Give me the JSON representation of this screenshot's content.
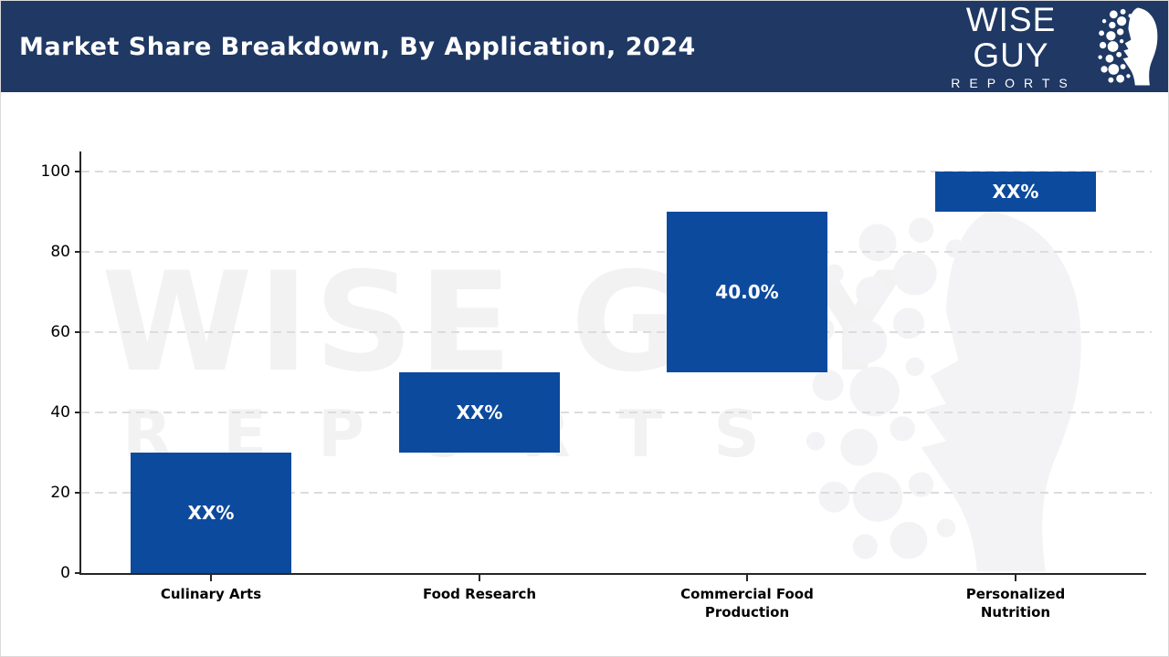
{
  "header": {
    "title": "Market Share Breakdown, By Application, 2024",
    "logo": {
      "line1": "WISE GUY",
      "line2": "REPORTS"
    }
  },
  "watermark": {
    "line1": "WISE GUY",
    "line2": "REPORTS"
  },
  "icons": {
    "logo_head": "dotted-head-profile-icon",
    "watermark_head": "dotted-head-profile-icon"
  },
  "colors": {
    "header_bg": "#1f3864",
    "bar": "#0c4a9d",
    "bar_label": "#ffffff",
    "grid": "#dcdcdc",
    "axis": "#262626",
    "watermark": "#f2f2f3"
  },
  "chart_data": {
    "type": "bar",
    "subtype": "floating-waterfall",
    "title": "Market Share Breakdown, By Application, 2024",
    "categories": [
      "Culinary Arts",
      "Food Research",
      "Commercial Food Production",
      "Personalized Nutrition"
    ],
    "series": [
      {
        "name": "Market Share",
        "segments": [
          {
            "category": "Culinary Arts",
            "start": 0,
            "end": 30,
            "label": "XX%"
          },
          {
            "category": "Food Research",
            "start": 30,
            "end": 50,
            "label": "XX%"
          },
          {
            "category": "Commercial Food Production",
            "start": 50,
            "end": 90,
            "label": "40.0%"
          },
          {
            "category": "Personalized Nutrition",
            "start": 90,
            "end": 100,
            "label": "XX%"
          }
        ]
      }
    ],
    "xlabel": "",
    "ylabel": "",
    "ylim": [
      0,
      100
    ],
    "yticks": [
      0,
      20,
      40,
      60,
      80,
      100
    ],
    "grid": "horizontal-dashed",
    "legend": "none"
  }
}
